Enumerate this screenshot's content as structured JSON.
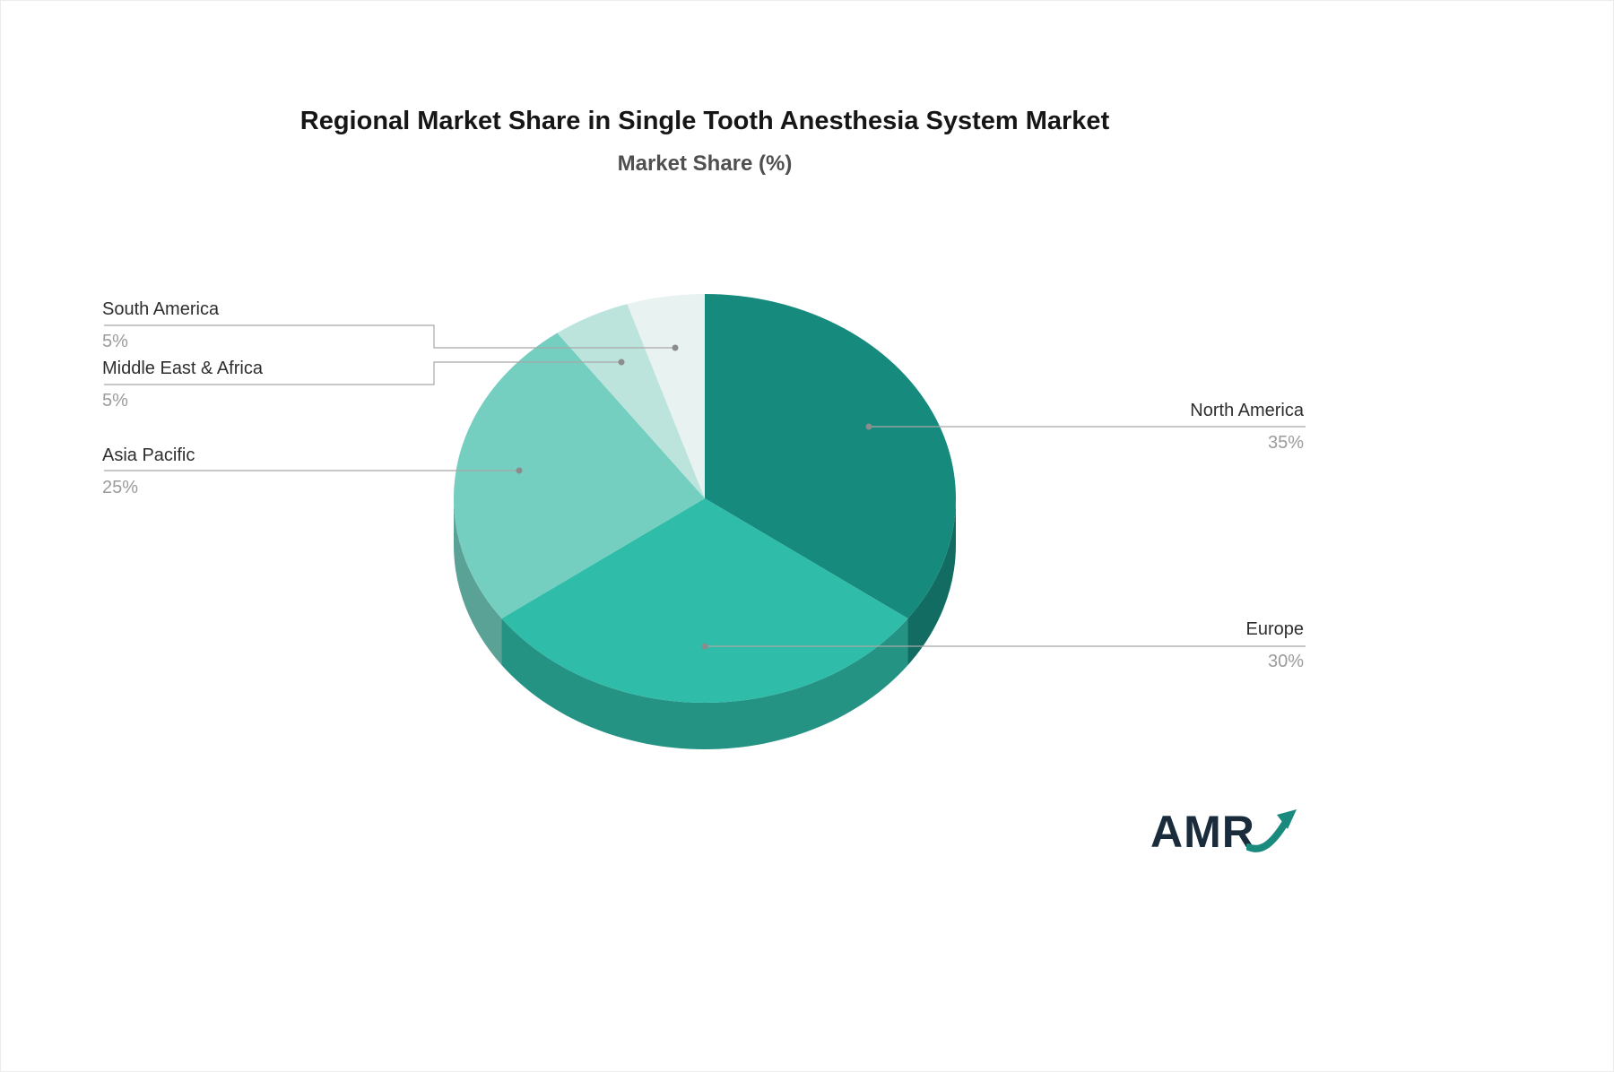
{
  "chart_data": {
    "type": "pie",
    "style": "pie3d",
    "title": "Regional Market Share in Single Tooth Anesthesia System Market",
    "subtitle": "Market Share (%)",
    "unit": "%",
    "legend_position": "none",
    "start_angle_deg": 0,
    "direction": "clockwise",
    "labels": [
      "North America",
      "Europe",
      "Asia Pacific",
      "Middle East & Africa",
      "South America"
    ],
    "values": [
      35,
      30,
      25,
      5,
      5
    ],
    "display_values": [
      "35%",
      "30%",
      "25%",
      "5%",
      "5%"
    ],
    "colors": [
      "#178a7e",
      "#2fbca9",
      "#74cfc0",
      "#bce4dd",
      "#e8f2f0"
    ],
    "leader_line_color": "#a8a8a8",
    "label_text_color": "#2e2e2e",
    "value_text_color": "#9b9b9b"
  },
  "logo_text": "AMR"
}
